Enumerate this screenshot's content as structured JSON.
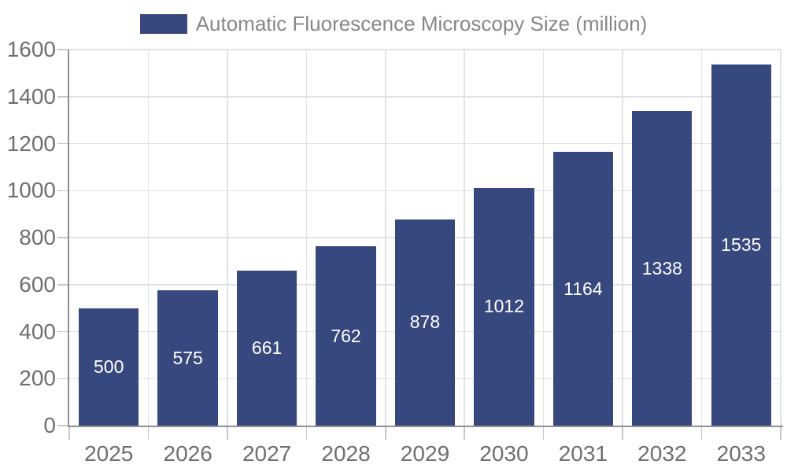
{
  "legend": {
    "label": "Automatic Fluorescence Microscopy Size (million)",
    "swatch_color": "#36487E"
  },
  "chart_data": {
    "type": "bar",
    "title": "Automatic Fluorescence Microscopy Size (million)",
    "categories": [
      "2025",
      "2026",
      "2027",
      "2028",
      "2029",
      "2030",
      "2031",
      "2032",
      "2033"
    ],
    "values": [
      500,
      575,
      661,
      762,
      878,
      1012,
      1164,
      1338,
      1535
    ],
    "xlabel": "",
    "ylabel": "",
    "ylim": [
      0,
      1600
    ],
    "y_ticks": [
      0,
      200,
      400,
      600,
      800,
      1000,
      1200,
      1400,
      1600
    ],
    "grid": true,
    "legend_position": "top-center",
    "bar_label_position": "inside-center",
    "colors": {
      "bar": "#36487E",
      "bar_label": "#FFFFFF",
      "grid_line": "#E2E2E6",
      "axis_line": "#8F8F95",
      "tick_line": "#C6C6CC",
      "axis_label": "#6E6E73",
      "legend_text": "#86878A",
      "background": "#FFFFFF"
    }
  }
}
